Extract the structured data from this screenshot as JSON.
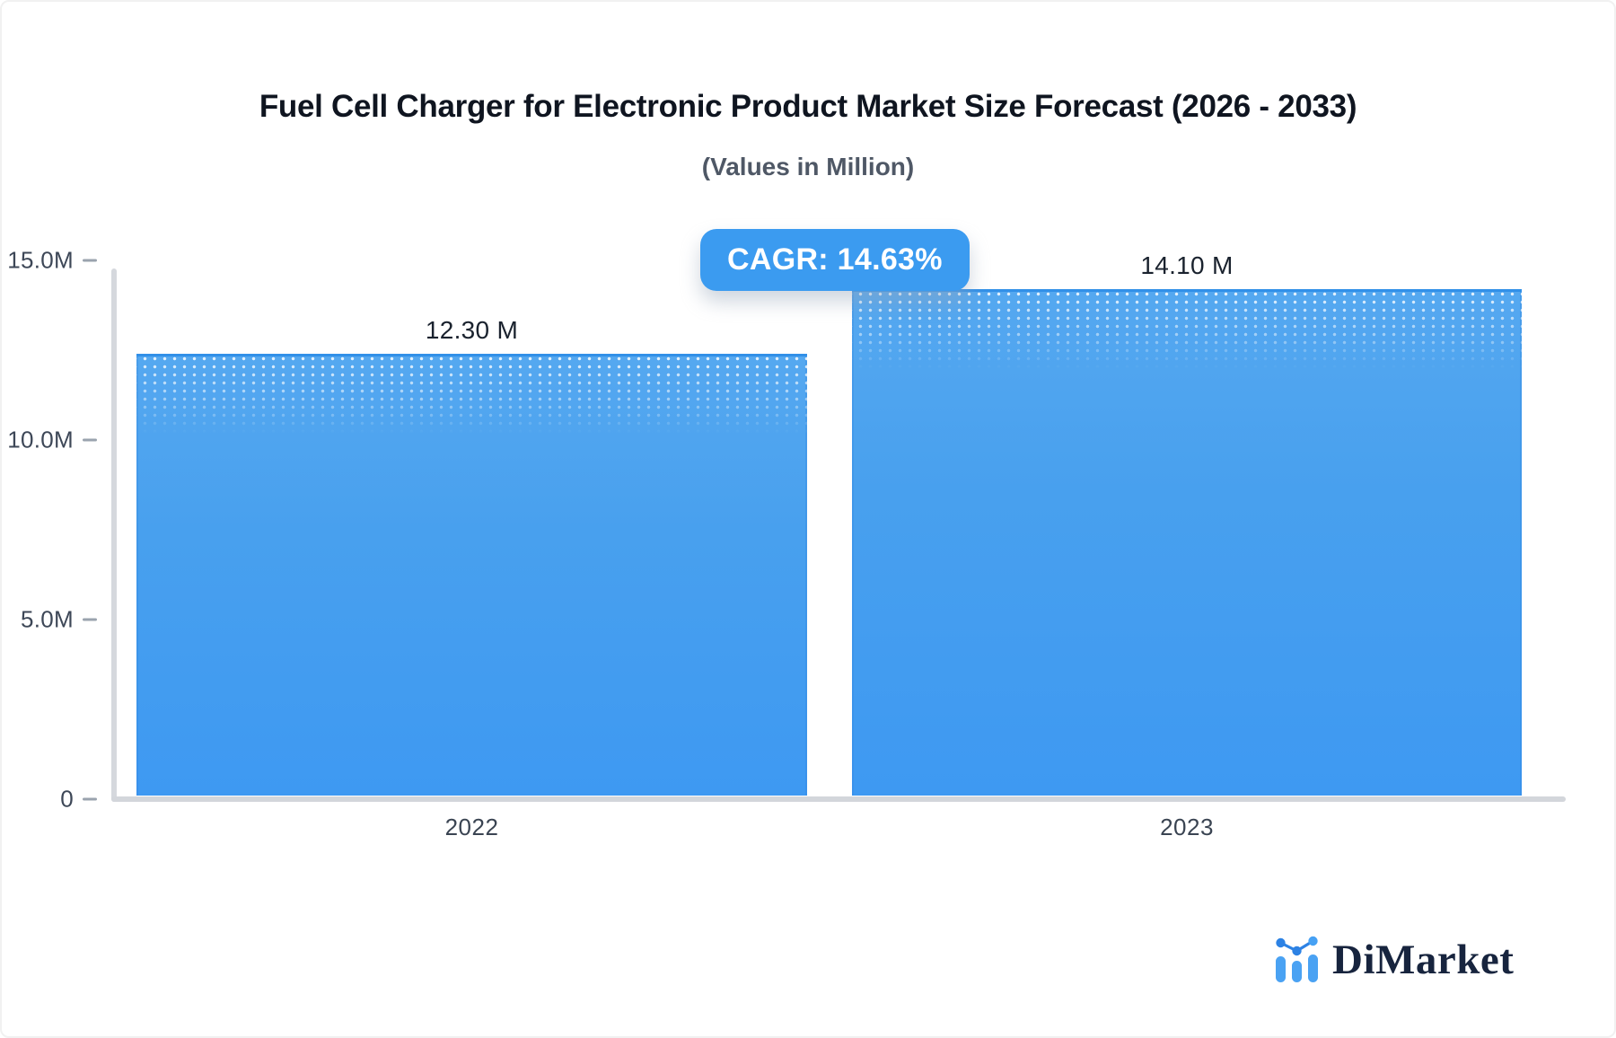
{
  "header": {
    "title": "Fuel Cell Charger for Electronic Product Market Size Forecast (2026 - 2033)",
    "subtitle": "(Values in Million)"
  },
  "cagr_badge": {
    "label": "CAGR: 14.63%"
  },
  "chart_data": {
    "type": "bar",
    "title": "Fuel Cell Charger for Electronic Product Market Size Forecast (2026 - 2033)",
    "subtitle": "(Values in Million)",
    "categories": [
      "2022",
      "2023"
    ],
    "values": [
      12.3,
      14.1
    ],
    "value_labels": [
      "12.30 M",
      "14.10 M"
    ],
    "cagr_percent": "14.63%",
    "xlabel": "",
    "ylabel": "",
    "ylim": [
      0,
      15
    ],
    "yticks": [
      0,
      5,
      10,
      15
    ],
    "ytick_labels": [
      "0",
      "5.0M",
      "10.0M",
      "15.0M"
    ],
    "grid": false,
    "legend": false,
    "bar_color": "#3f9af2"
  },
  "branding": {
    "name": "DiMarket",
    "icon": "dimarket-bar-chart-logo-icon"
  },
  "colors": {
    "accent_blue": "#3b9bf0",
    "bar_gradient_top": "#55a8f0",
    "bar_gradient_bottom": "#3e99f2",
    "axis_gray": "#d5d8dd",
    "tick_gray": "#9aa3ae",
    "text_dark": "#0f1520",
    "logo_navy": "#17243e",
    "logo_blue": "#4aa2f3",
    "logo_dot_blue": "#2d82e4"
  }
}
